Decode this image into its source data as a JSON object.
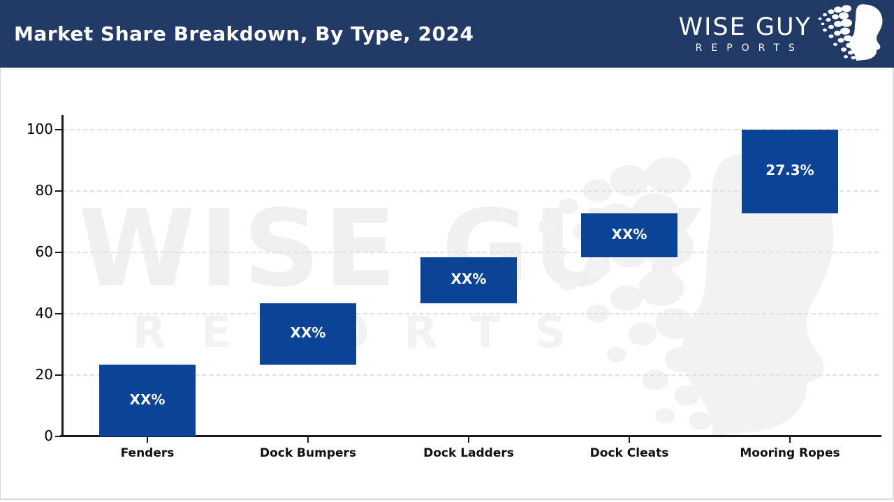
{
  "header": {
    "title": "Market Share Breakdown, By Type, 2024",
    "logo": {
      "line1": "WISE GUY",
      "line2": "REPORTS"
    }
  },
  "watermark": {
    "line1": "WISE GUY",
    "line2": "REPORTS"
  },
  "colors": {
    "header_bg": "#223A66",
    "bar": "#0B4397",
    "gridline": "#e0e0e0",
    "axis": "#1a1a1a",
    "watermark": "#f0f0f0"
  },
  "chart_data": {
    "type": "bar",
    "subtype": "waterfall",
    "title": "Market Share Breakdown, By Type, 2024",
    "categories": [
      "Fenders",
      "Dock Bumpers",
      "Dock Ladders",
      "Dock Cleats",
      "Mooring Ropes"
    ],
    "values": [
      23.4,
      20.0,
      15.0,
      14.3,
      27.3
    ],
    "bar_ranges": [
      [
        0,
        23.4
      ],
      [
        23.4,
        43.4
      ],
      [
        43.4,
        58.4
      ],
      [
        58.4,
        72.7
      ],
      [
        72.7,
        100
      ]
    ],
    "bar_labels": [
      "XX%",
      "XX%",
      "XX%",
      "XX%",
      "27.3%"
    ],
    "xlabel": "",
    "ylabel": "",
    "ylim": [
      0,
      100
    ],
    "yticks": [
      0,
      20,
      40,
      60,
      80,
      100
    ],
    "grid": "horizontal-dashed",
    "legend": "none",
    "bar_color": "#0B4397"
  }
}
